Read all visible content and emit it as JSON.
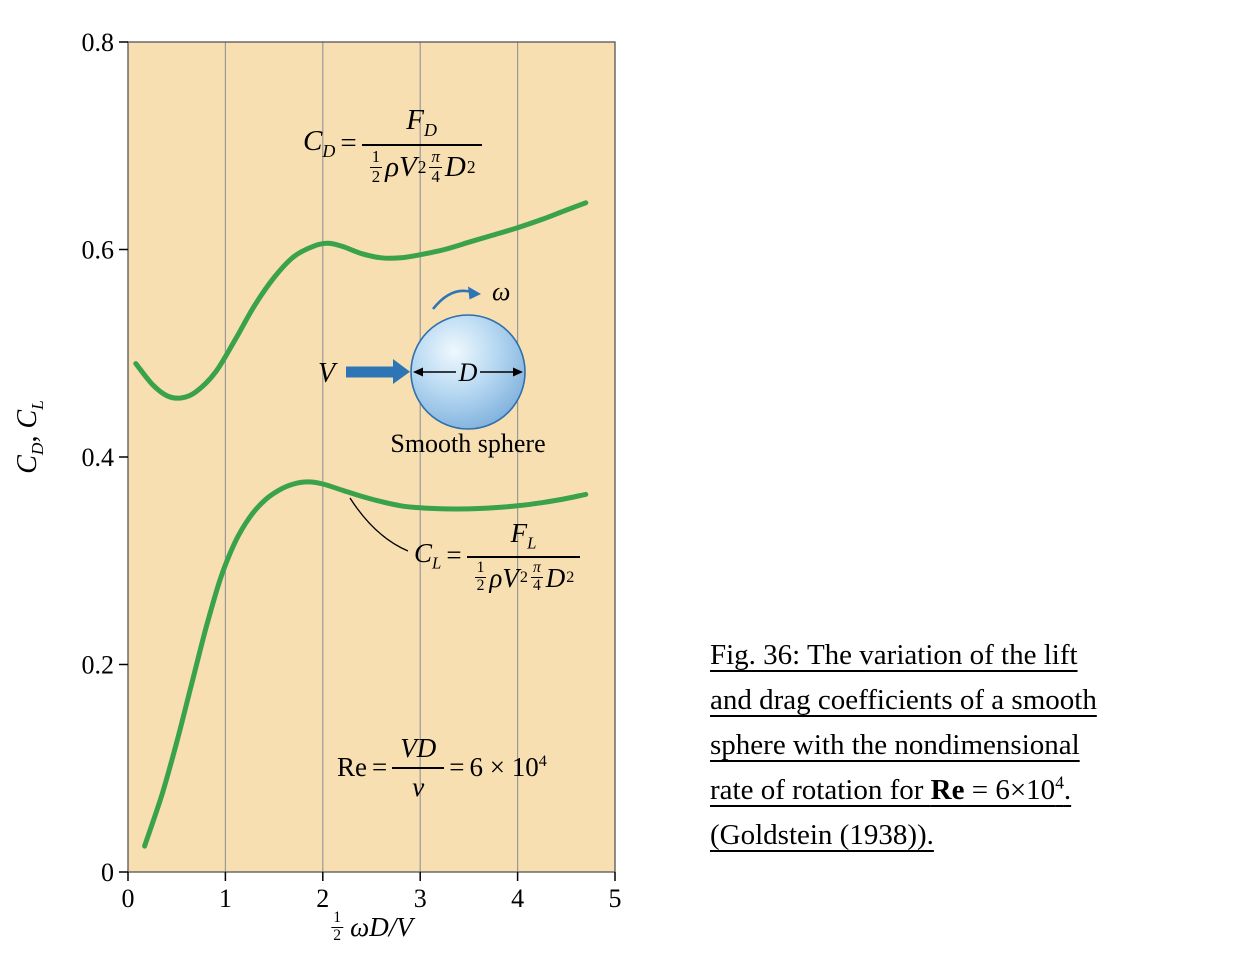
{
  "caption": {
    "lines": [
      {
        "text": "Fig. 36: The variation of the lift"
      },
      {
        "text": "and drag coefficients of a smooth"
      },
      {
        "text": "sphere with the nondimensional"
      },
      {
        "pre": "rate of rotation for ",
        "bold": "Re",
        "mid": " = 6×10",
        "sup": "4",
        "post": "."
      },
      {
        "text": "(Goldstein (1938))."
      }
    ]
  },
  "formulas": {
    "cd": {
      "lhs": "C",
      "lhs_sub": "D",
      "eq": "=",
      "num": "F",
      "num_sub": "D",
      "den_f1_top": "1",
      "den_f1_bot": "2",
      "den_mid": "ρV",
      "den_sup1": "2",
      "den_f2_top": "π",
      "den_f2_bot": "4",
      "den_tail": "D",
      "den_sup2": "2"
    },
    "cl": {
      "lhs": "C",
      "lhs_sub": "L",
      "eq": "=",
      "num": "F",
      "num_sub": "L",
      "den_f1_top": "1",
      "den_f1_bot": "2",
      "den_mid": "ρV",
      "den_sup1": "2",
      "den_f2_top": "π",
      "den_f2_bot": "4",
      "den_tail": "D",
      "den_sup2": "2"
    },
    "re": {
      "lhs": "Re",
      "eq": "=",
      "num": "VD",
      "den": "ν",
      "eq2": "=",
      "val": "6 × 10",
      "exp": "4"
    }
  },
  "illustration": {
    "v_label": "V",
    "omega_label": "ω",
    "d_label": "D",
    "label": "Smooth sphere"
  },
  "axis": {
    "xlabel_frac_top": "1",
    "xlabel_frac_bot": "2",
    "xlabel_rest": "ωD/V",
    "ylabel_c1": "C",
    "ylabel_s1": "D",
    "ylabel_comma": ", ",
    "ylabel_c2": "C",
    "ylabel_s2": "L"
  },
  "colors": {
    "curve_green": "#3aa24b",
    "plot_bg": "#f7dfb2",
    "grid": "#999999",
    "border": "#555555",
    "arrow_blue": "#2e75b6",
    "sphere_stroke": "#2f6fae",
    "text": "#000000"
  },
  "chart_data": {
    "type": "line",
    "title": "",
    "xlabel": "(1/2)ωD/V",
    "ylabel": "C_D, C_L",
    "xlim": [
      0,
      5
    ],
    "ylim": [
      0,
      0.8
    ],
    "xticks": [
      0,
      1,
      2,
      3,
      4,
      5
    ],
    "yticks": [
      0,
      0.2,
      0.4,
      0.6,
      0.8
    ],
    "grid": "vertical-only",
    "legend": "none",
    "annotations": [
      "C_D = F_D / ((1/2)ρV²(π/4)D²)",
      "C_L = F_L / ((1/2)ρV²(π/4)D²)",
      "Re = VD/ν = 6×10⁴",
      "Smooth sphere"
    ],
    "series": [
      {
        "name": "CD",
        "label": "Drag coefficient C_D",
        "x": [
          0.08,
          0.25,
          0.4,
          0.55,
          0.7,
          0.9,
          1.1,
          1.3,
          1.5,
          1.7,
          1.9,
          2.05,
          2.2,
          2.4,
          2.6,
          2.8,
          3.0,
          3.25,
          3.5,
          3.75,
          4.0,
          4.25,
          4.5,
          4.7
        ],
        "y": [
          0.49,
          0.47,
          0.459,
          0.457,
          0.463,
          0.482,
          0.513,
          0.546,
          0.573,
          0.593,
          0.603,
          0.606,
          0.603,
          0.596,
          0.592,
          0.592,
          0.595,
          0.6,
          0.607,
          0.614,
          0.621,
          0.629,
          0.638,
          0.645
        ]
      },
      {
        "name": "CL",
        "label": "Lift coefficient C_L",
        "x": [
          0.17,
          0.35,
          0.5,
          0.65,
          0.8,
          0.95,
          1.1,
          1.25,
          1.4,
          1.55,
          1.7,
          1.85,
          2.0,
          2.2,
          2.4,
          2.6,
          2.8,
          3.0,
          3.25,
          3.5,
          3.75,
          4.0,
          4.25,
          4.5,
          4.7
        ],
        "y": [
          0.025,
          0.075,
          0.125,
          0.18,
          0.235,
          0.283,
          0.318,
          0.342,
          0.358,
          0.368,
          0.374,
          0.376,
          0.374,
          0.368,
          0.362,
          0.357,
          0.353,
          0.351,
          0.35,
          0.35,
          0.351,
          0.353,
          0.356,
          0.36,
          0.364
        ]
      }
    ]
  }
}
